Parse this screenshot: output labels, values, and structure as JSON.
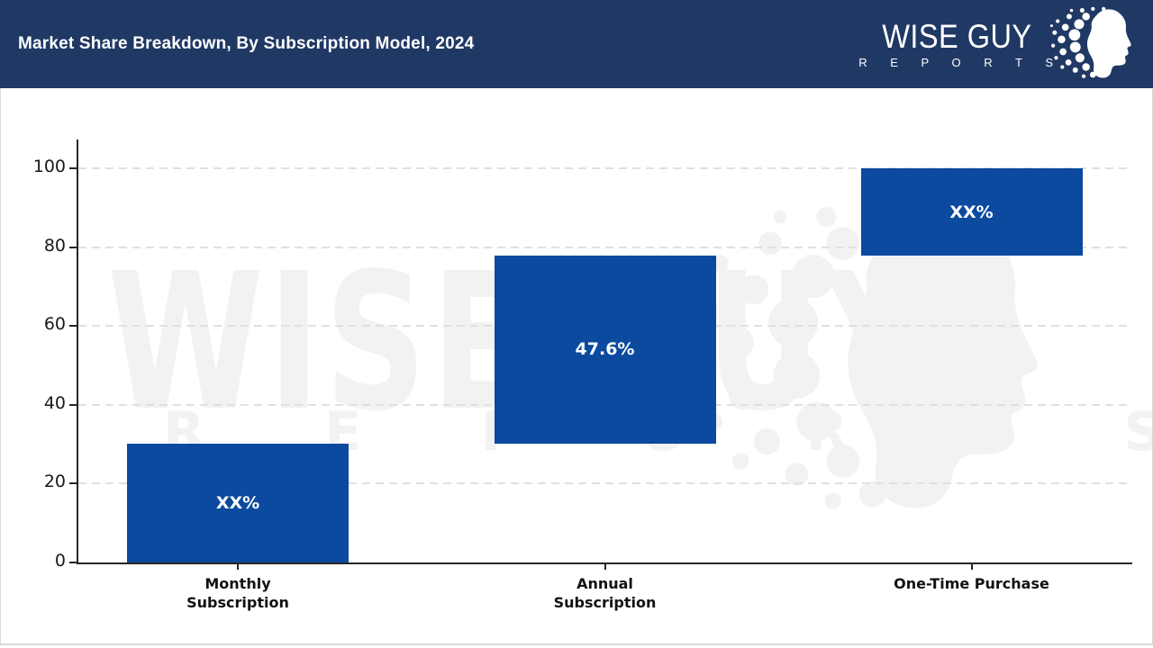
{
  "header": {
    "title": "Market Share Breakdown, By Subscription Model, 2024",
    "logo_name": "WISE GUY",
    "logo_sub": "R E P O R T S"
  },
  "watermark": {
    "line1": "WISE GUY",
    "line2": "R E P O R T S"
  },
  "colors": {
    "header_bg": "#203864",
    "bar": "#0b4a9e",
    "grid": "#e0e0e0",
    "axis": "#262626",
    "tick_text": "#1a1a1a",
    "bar_label_text": "#ffffff",
    "watermark": "#f2f2f2",
    "border": "#d9d9d9"
  },
  "chart_data": {
    "type": "bar",
    "subtype": "waterfall-floating-bars",
    "title": "Market Share Breakdown, By Subscription Model, 2024",
    "categories": [
      "Monthly Subscription",
      "Annual Subscription",
      "One-Time Purchase"
    ],
    "categories_lines": [
      [
        "Monthly",
        "Subscription"
      ],
      [
        "Annual",
        "Subscription"
      ],
      [
        "One-Time Purchase"
      ]
    ],
    "segments": [
      {
        "category": "Monthly Subscription",
        "start": 0,
        "end": 30.2,
        "value": 30.2,
        "label": "XX%"
      },
      {
        "category": "Annual Subscription",
        "start": 30.2,
        "end": 77.8,
        "value": 47.6,
        "label": "47.6%"
      },
      {
        "category": "One-Time Purchase",
        "start": 77.8,
        "end": 100,
        "value": 22.2,
        "label": "XX%"
      }
    ],
    "xlabel": "",
    "ylabel": "",
    "ylim": [
      0,
      100
    ],
    "yticks": [
      0,
      20,
      40,
      60,
      80,
      100
    ],
    "grid": "horizontal-dashed",
    "legend": "none",
    "bar_color": "#0b4a9e"
  }
}
